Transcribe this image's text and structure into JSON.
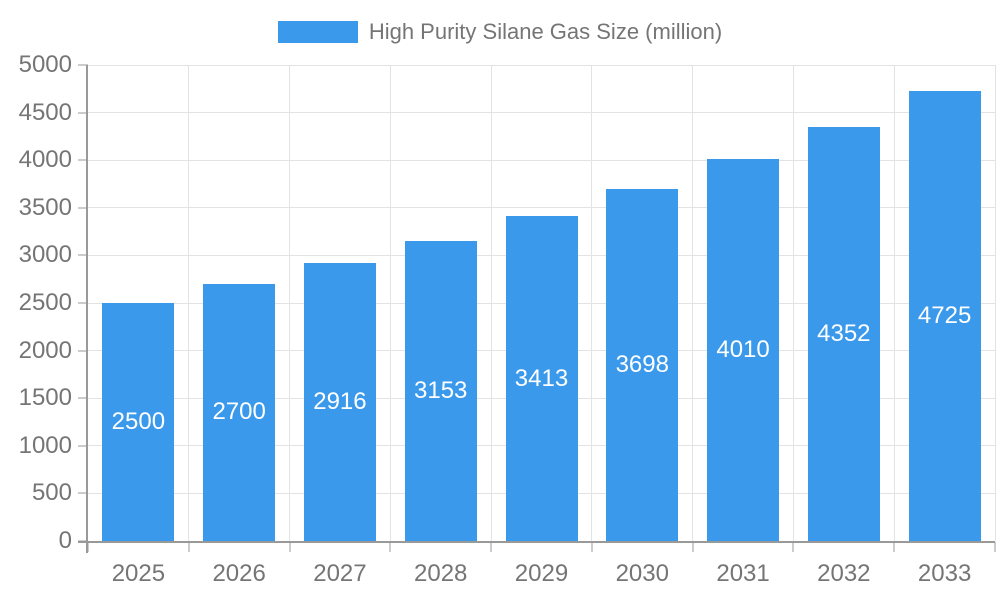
{
  "chart_data": {
    "type": "bar",
    "title": "",
    "legend_label": "High Purity Silane Gas Size (million)",
    "legend_position": "top-center",
    "categories": [
      "2025",
      "2026",
      "2027",
      "2028",
      "2029",
      "2030",
      "2031",
      "2032",
      "2033"
    ],
    "values": [
      2500,
      2700,
      2916,
      3153,
      3413,
      3698,
      4010,
      4352,
      4725
    ],
    "series": [
      {
        "name": "High Purity Silane Gas Size (million)",
        "values": [
          2500,
          2700,
          2916,
          3153,
          3413,
          3698,
          4010,
          4352,
          4725
        ]
      }
    ],
    "xlabel": "",
    "ylabel": "",
    "ylim": [
      0,
      5000
    ],
    "ytick_step": 500,
    "yticks": [
      0,
      500,
      1000,
      1500,
      2000,
      2500,
      3000,
      3500,
      4000,
      4500,
      5000
    ],
    "grid": true,
    "bar_label_position": "inside-center",
    "colors": {
      "bar": "#3B99EC",
      "bar_label": "#FFFFFF",
      "axis_text": "#757575",
      "legend_text": "#757575",
      "grid_line": "#E3E3E3",
      "axis_line": "#999999",
      "tick": "#CCCCCC",
      "background": "#FFFFFF"
    }
  }
}
